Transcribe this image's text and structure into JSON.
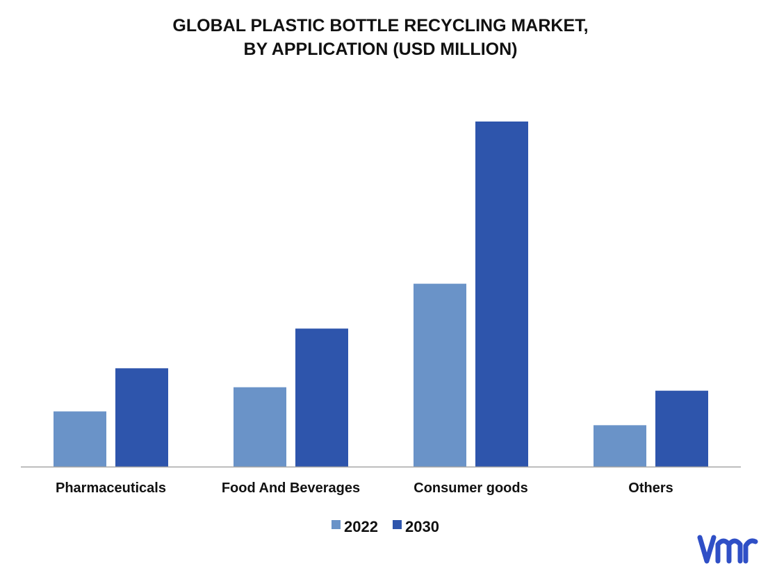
{
  "colors": {
    "s2022": "#6a93c8",
    "s2030": "#2e55ac",
    "axis": "#a6a6a6",
    "text": "#111111",
    "logo": "#2f4fc6"
  },
  "logo_icon": "vmr-logo-icon",
  "chart_data": {
    "type": "bar",
    "title_lines": [
      "GLOBAL PLASTIC BOTTLE RECYCLING MARKET,",
      "BY APPLICATION (USD MILLION)"
    ],
    "categories": [
      "Pharmaceuticals",
      "Food And Beverages",
      "Consumer goods",
      "Others"
    ],
    "series": [
      {
        "name": "2022",
        "values": [
          16,
          23,
          53,
          12
        ]
      },
      {
        "name": "2030",
        "values": [
          28.5,
          40,
          100,
          22
        ]
      }
    ],
    "ylim": [
      0,
      100
    ],
    "grid": false,
    "legend": "bottom-center"
  }
}
